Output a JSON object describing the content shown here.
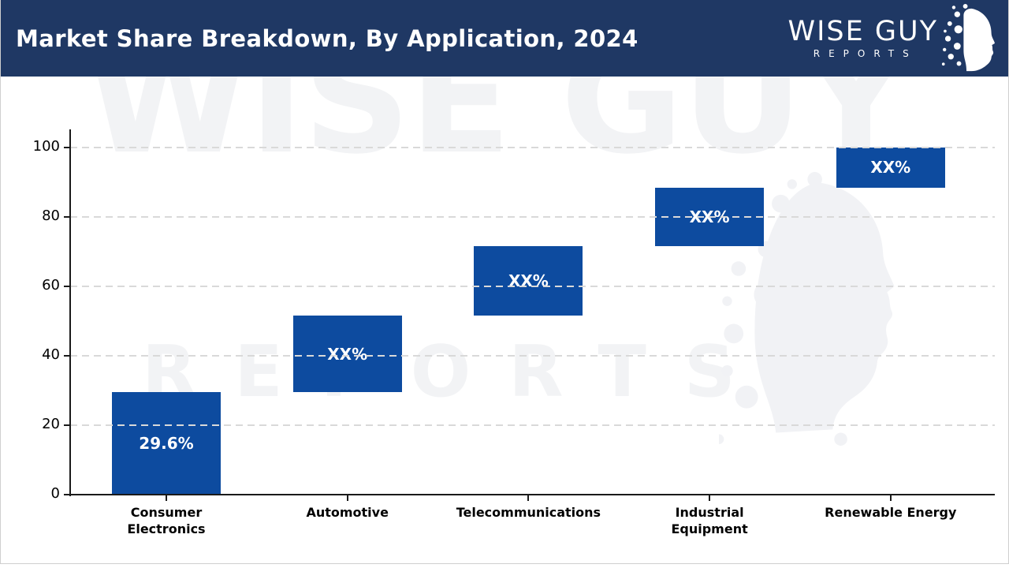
{
  "header": {
    "title": "Market Share Breakdown, By Application, 2024",
    "logo": {
      "line1": "WISE GUY",
      "line2": "REPORTS"
    }
  },
  "watermark": {
    "line1": "WISE GUY",
    "line2": "REPORTS"
  },
  "chart_data": {
    "type": "bar",
    "subtype": "waterfall",
    "title": "Market Share Breakdown, By Application, 2024",
    "categories": [
      "Consumer\nElectronics",
      "Automotive",
      "Telecommunications",
      "Industrial\nEquipment",
      "Renewable Energy"
    ],
    "segments": [
      {
        "category": "Consumer Electronics",
        "start": 0,
        "end": 29.6,
        "label": "29.6%"
      },
      {
        "category": "Automotive",
        "start": 29.6,
        "end": 51.5,
        "label": "XX%"
      },
      {
        "category": "Telecommunications",
        "start": 51.5,
        "end": 71.5,
        "label": "XX%"
      },
      {
        "category": "Industrial Equipment",
        "start": 71.5,
        "end": 88.5,
        "label": "XX%"
      },
      {
        "category": "Renewable Energy",
        "start": 88.5,
        "end": 100,
        "label": "XX%"
      }
    ],
    "ylim": [
      0,
      100
    ],
    "yticks": [
      0,
      20,
      40,
      60,
      80,
      100
    ],
    "xlabel": "",
    "ylabel": "",
    "grid": "horizontal-dashed",
    "legend": "none",
    "bar_color": "#0d4b9f"
  },
  "colors": {
    "header_bg": "#1f3864",
    "bar": "#0d4b9f",
    "axis": "#1a1a1a",
    "gridline": "#d9d9d9",
    "watermark": "#f2f3f5"
  }
}
